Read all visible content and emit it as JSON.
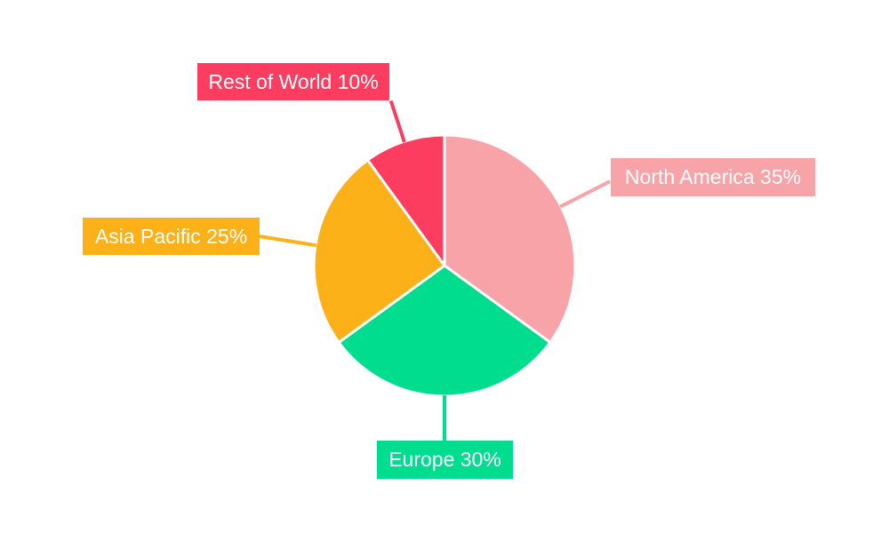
{
  "page": {
    "background": "#ffffff",
    "label_text_color": "#ffffff"
  },
  "chart_data": {
    "type": "pie",
    "legend": "none",
    "label_style": "boxed-callouts-with-leader-lines",
    "start_angle_deg": 0,
    "direction": "clockwise",
    "slices": [
      {
        "id": "north-america",
        "name": "North America",
        "value": 35,
        "label": "North America 35%",
        "color": "#F8A3A7"
      },
      {
        "id": "europe",
        "name": "Europe",
        "value": 30,
        "label": "Europe 30%",
        "color": "#00DD8E"
      },
      {
        "id": "asia-pacific",
        "name": "Asia Pacific",
        "value": 25,
        "label": "Asia Pacific 25%",
        "color": "#FBB117"
      },
      {
        "id": "rest-of-world",
        "name": "Rest of World",
        "value": 10,
        "label": "Rest of World 10%",
        "color": "#FC3D60"
      }
    ]
  }
}
